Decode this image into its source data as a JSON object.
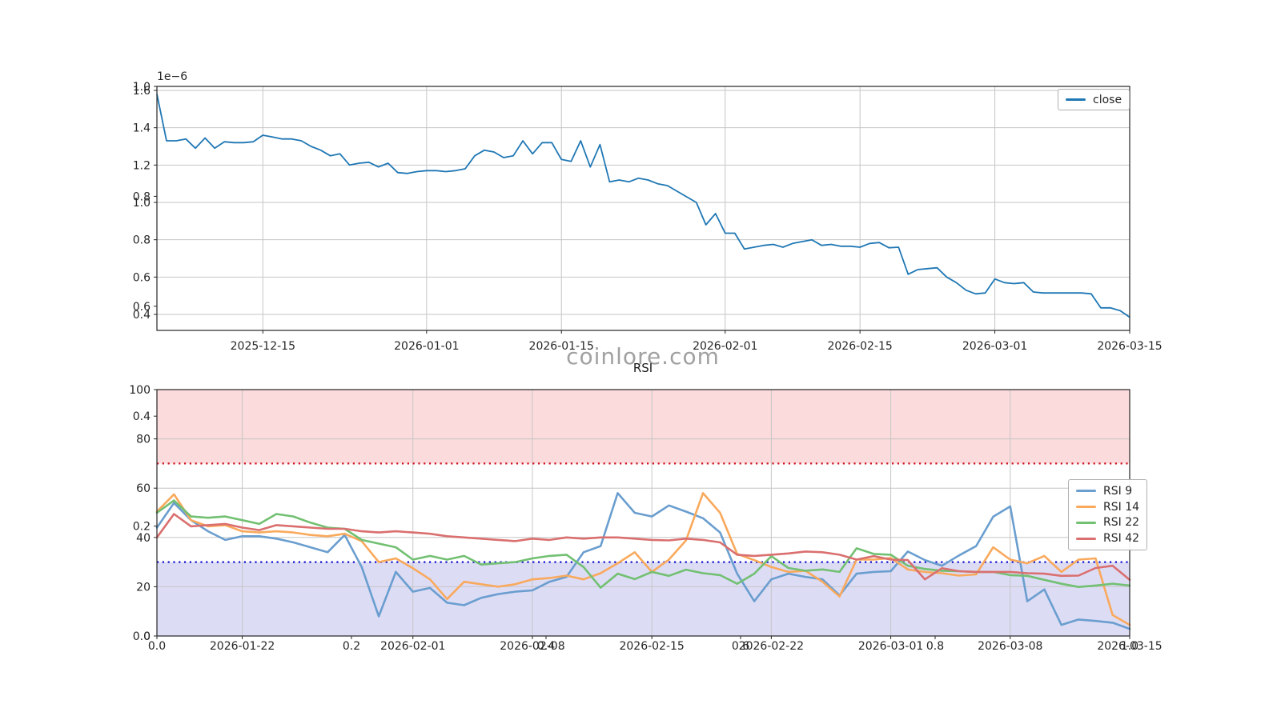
{
  "watermark": "coinlore.com",
  "chart_data": [
    {
      "type": "line",
      "name": "price-chart",
      "y_offset_label": "1e−6",
      "days_total": 101,
      "x_ticks": [
        {
          "label": "2025-12-15",
          "day": 11
        },
        {
          "label": "2026-01-01",
          "day": 28
        },
        {
          "label": "2026-01-15",
          "day": 42
        },
        {
          "label": "2026-02-01",
          "day": 59
        },
        {
          "label": "2026-02-15",
          "day": 73
        },
        {
          "label": "2026-03-01",
          "day": 87
        },
        {
          "label": "2026-03-15",
          "day": 101
        }
      ],
      "y_ticks": [
        "0.4",
        "0.6",
        "0.8",
        "1.0",
        "1.2",
        "1.4",
        "1.6"
      ],
      "ylim": [
        0.31,
        1.62
      ],
      "grid": true,
      "legend_position": "upper right",
      "series": [
        {
          "name": "close",
          "color": "#1f77b4",
          "values": [
            1.58,
            1.33,
            1.33,
            1.34,
            1.29,
            1.345,
            1.29,
            1.325,
            1.32,
            1.32,
            1.325,
            1.36,
            1.35,
            1.34,
            1.34,
            1.33,
            1.3,
            1.28,
            1.25,
            1.26,
            1.2,
            1.21,
            1.215,
            1.19,
            1.21,
            1.16,
            1.155,
            1.165,
            1.17,
            1.17,
            1.165,
            1.17,
            1.18,
            1.25,
            1.28,
            1.27,
            1.24,
            1.25,
            1.33,
            1.26,
            1.32,
            1.32,
            1.23,
            1.22,
            1.33,
            1.19,
            1.31,
            1.11,
            1.12,
            1.11,
            1.13,
            1.12,
            1.1,
            1.09,
            1.06,
            1.03,
            1.0,
            0.88,
            0.94,
            0.835,
            0.835,
            0.75,
            0.76,
            0.77,
            0.775,
            0.76,
            0.78,
            0.79,
            0.8,
            0.77,
            0.775,
            0.765,
            0.765,
            0.76,
            0.78,
            0.785,
            0.757,
            0.76,
            0.615,
            0.64,
            0.645,
            0.65,
            0.6,
            0.57,
            0.53,
            0.51,
            0.515,
            0.59,
            0.57,
            0.565,
            0.57,
            0.52,
            0.515,
            0.515,
            0.515,
            0.515,
            0.515,
            0.51,
            0.435,
            0.435,
            0.42,
            0.385
          ]
        }
      ]
    },
    {
      "type": "line",
      "name": "rsi-chart",
      "title": "RSI",
      "days_total": 57,
      "x_ticks": [
        {
          "label": "2026-01-22",
          "day": 5
        },
        {
          "label": "2026-02-01",
          "day": 15
        },
        {
          "label": "2026-02-08",
          "day": 22
        },
        {
          "label": "2026-02-15",
          "day": 29
        },
        {
          "label": "2026-02-22",
          "day": 36
        },
        {
          "label": "2026-03-01",
          "day": 43
        },
        {
          "label": "2026-03-08",
          "day": 50
        },
        {
          "label": "2026-03-15",
          "day": 57
        }
      ],
      "y_ticks": [
        "0",
        "20",
        "40",
        "60",
        "80",
        "100"
      ],
      "ylim": [
        0,
        100
      ],
      "grid": true,
      "overbought_level": 70,
      "oversold_level": 30,
      "overbought_line_color": "#cc1122",
      "oversold_line_color": "#1111cc",
      "overbought_fill": "#fbdbdb",
      "oversold_fill": "#dddcf5",
      "legend_position": "right",
      "series": [
        {
          "name": "RSI 9",
          "color": "#6a9ecf",
          "values": [
            44,
            54,
            47,
            42.5,
            39,
            40.5,
            40.5,
            39.5,
            38,
            36,
            34,
            41,
            28,
            8,
            26,
            18,
            19.5,
            13.5,
            12.5,
            15.5,
            17,
            18,
            18.5,
            22,
            24,
            34,
            36.5,
            58,
            50,
            48.5,
            53,
            50.5,
            47.8,
            42,
            25.3,
            14.1,
            23,
            25.3,
            24,
            23,
            16.5,
            25.3,
            26,
            26.3,
            34.3,
            30.8,
            28.5,
            32.7,
            36.5,
            48.4,
            52.6,
            14.1,
            18.9,
            4.5,
            6.7,
            6.1,
            5.4,
            2.9
          ]
        },
        {
          "name": "RSI 14",
          "color": "#f9a95c",
          "values": [
            50.5,
            57.5,
            47,
            44.5,
            45,
            42.5,
            42,
            42.5,
            42,
            41,
            40.5,
            41.5,
            38.5,
            30,
            31.5,
            27.5,
            23,
            15,
            22,
            21,
            20,
            21,
            23,
            23.5,
            24.5,
            23,
            25.5,
            29.5,
            34,
            26,
            31,
            38.8,
            58,
            50,
            33.3,
            30.8,
            28,
            26,
            26.5,
            22,
            16,
            31,
            31,
            31.7,
            27,
            26,
            25.5,
            24.5,
            25,
            36,
            31,
            29.5,
            32.5,
            26,
            31,
            31.5,
            8.5,
            4.5
          ]
        },
        {
          "name": "RSI 22",
          "color": "#72c072",
          "values": [
            50,
            55,
            48.5,
            48,
            48.5,
            47,
            45.5,
            49.5,
            48.5,
            46,
            44,
            43.5,
            39,
            37.5,
            36,
            31,
            32.5,
            31,
            32.5,
            29,
            29.5,
            30,
            31.5,
            32.5,
            33,
            28,
            19.6,
            25.3,
            23.1,
            26,
            24.4,
            26.9,
            25.5,
            24.7,
            21.2,
            25.3,
            32.4,
            27.6,
            26.5,
            27,
            26,
            35.6,
            33.3,
            33,
            28.5,
            27.2,
            26.5,
            26.3,
            26,
            26,
            24.7,
            24.4,
            22.8,
            21.2,
            19.9,
            20.5,
            21.2,
            20.5
          ]
        },
        {
          "name": "RSI 42",
          "color": "#da6f6f",
          "values": [
            40,
            49.5,
            44.5,
            45,
            45.5,
            44,
            43,
            45,
            44.5,
            44,
            43.5,
            43.5,
            42.5,
            42,
            42.5,
            42,
            41.5,
            40.5,
            40,
            39.5,
            39,
            38.5,
            39.5,
            39,
            40,
            39.5,
            40,
            40,
            39.5,
            39,
            38.8,
            39.5,
            39,
            38,
            33,
            32.5,
            33,
            33.5,
            34.3,
            34,
            33,
            31,
            32.4,
            31,
            30.8,
            23,
            27.5,
            26.3,
            26,
            26,
            26,
            25.5,
            25.3,
            24.4,
            24.5,
            27.6,
            28.5,
            22.8
          ]
        }
      ]
    },
    {
      "type": "hidden-axes",
      "name": "overlay-axes",
      "x_ticks": [
        "0.0",
        "0.2",
        "0.4",
        "0.6",
        "0.8",
        "1.0"
      ],
      "y_ticks": [
        "0.0",
        "0.2",
        "0.4",
        "0.6",
        "0.8",
        "1.0"
      ]
    }
  ]
}
